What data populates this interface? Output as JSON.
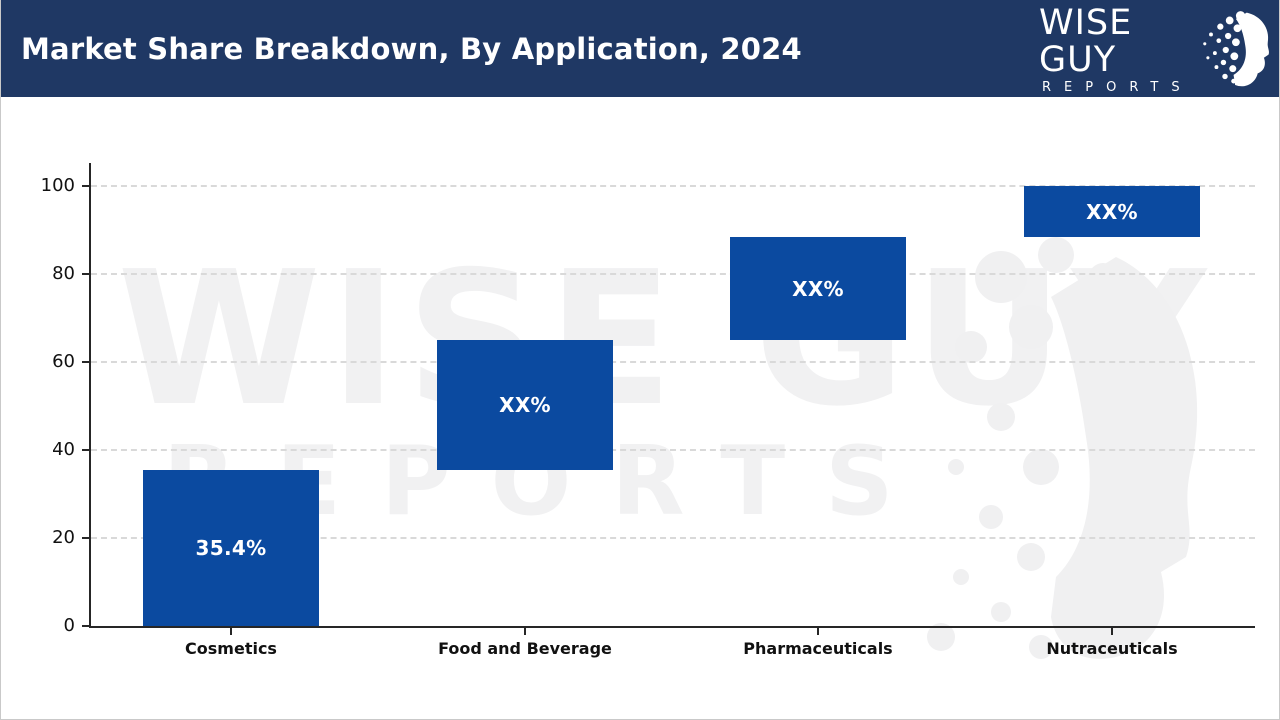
{
  "header": {
    "title": "Market Share Breakdown, By Application, 2024"
  },
  "logo": {
    "name": "WISE GUY",
    "subtitle": "REPORTS"
  },
  "watermark": {
    "name": "WISE GUY",
    "subtitle": "REPORTS"
  },
  "colors": {
    "header_bg": "#1f3864",
    "bar": "#0b4aa0",
    "bar_label": "#ffffff",
    "axis": "#262626",
    "gridline": "#d9d9d9",
    "watermark": "#f1f1f2"
  },
  "chart_data": {
    "type": "bar",
    "subtype": "waterfall",
    "title": "Market Share Breakdown, By Application, 2024",
    "categories": [
      "Cosmetics",
      "Food and Beverage",
      "Pharmaceuticals",
      "Nutraceuticals"
    ],
    "bars": [
      {
        "category": "Cosmetics",
        "start": 0,
        "end": 35.4,
        "label": "35.4%"
      },
      {
        "category": "Food and Beverage",
        "start": 35.4,
        "end": 65,
        "label": "XX%"
      },
      {
        "category": "Pharmaceuticals",
        "start": 65,
        "end": 88.4,
        "label": "XX%"
      },
      {
        "category": "Nutraceuticals",
        "start": 88.4,
        "end": 100,
        "label": "XX%"
      }
    ],
    "y_ticks": [
      0,
      20,
      40,
      60,
      80,
      100
    ],
    "ylim": [
      0,
      105
    ],
    "xlabel": "",
    "ylabel": "",
    "grid": "horizontal-dashed",
    "legend": "none"
  }
}
